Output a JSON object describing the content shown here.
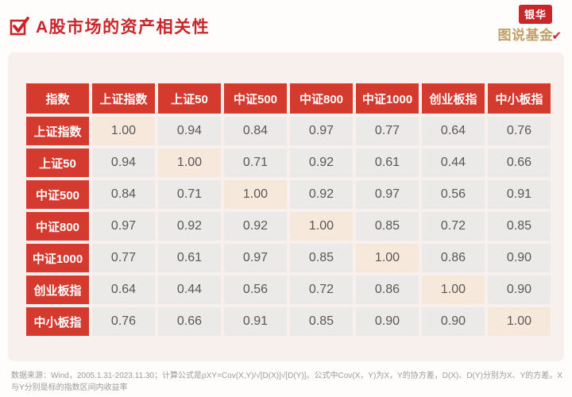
{
  "header": {
    "title": "A股市场的资产相关性",
    "title_icon": "checkbox-check-icon"
  },
  "logo": {
    "name": "银华",
    "tagline": "图说基金",
    "check_icon": "check-icon"
  },
  "colors": {
    "brand_red": "#c9262b",
    "table_red": "#d43a2e",
    "panel_bg": "#f8f0ed",
    "page_bg": "#fefdfc",
    "cell_gray": "#eceae9",
    "cell_diagonal_peach": "#f6e9dc",
    "value_text": "#595757",
    "logo_gold": "#c2a169",
    "footnote_gray": "#9b9b9b"
  },
  "chart_data": {
    "type": "table",
    "title": "A股市场的资产相关性",
    "subtype": "correlation-matrix",
    "corner_header": "指数",
    "columns": [
      "上证指数",
      "上证50",
      "中证500",
      "中证800",
      "中证1000",
      "创业板指",
      "中小板指"
    ],
    "rows": [
      {
        "label": "上证指数",
        "values": [
          "1.00",
          "0.94",
          "0.84",
          "0.97",
          "0.77",
          "0.64",
          "0.76"
        ]
      },
      {
        "label": "上证50",
        "values": [
          "0.94",
          "1.00",
          "0.71",
          "0.92",
          "0.61",
          "0.44",
          "0.66"
        ]
      },
      {
        "label": "中证500",
        "values": [
          "0.84",
          "0.71",
          "1.00",
          "0.92",
          "0.97",
          "0.56",
          "0.91"
        ]
      },
      {
        "label": "中证800",
        "values": [
          "0.97",
          "0.92",
          "0.92",
          "1.00",
          "0.85",
          "0.72",
          "0.85"
        ]
      },
      {
        "label": "中证1000",
        "values": [
          "0.77",
          "0.61",
          "0.97",
          "0.85",
          "1.00",
          "0.86",
          "0.90"
        ]
      },
      {
        "label": "创业板指",
        "values": [
          "0.64",
          "0.44",
          "0.56",
          "0.72",
          "0.86",
          "1.00",
          "0.90"
        ]
      },
      {
        "label": "中小板指",
        "values": [
          "0.76",
          "0.66",
          "0.91",
          "0.85",
          "0.90",
          "0.90",
          "1.00"
        ]
      }
    ],
    "layout_hint": "diagonal 1.00 cells highlighted in peach; headers and row labels on red"
  },
  "footnote": {
    "text": "数据来源：Wind，2005.1.31-2023.11.30；计算公式是ρXY=Cov(X,Y)/√[D(X)]√[D(Y)]。公式中Cov(X，Y)为X，Y的协方差，D(X)、D(Y)分别为X、Y的方差。X与Y分别是标的指数区间内收益率"
  }
}
